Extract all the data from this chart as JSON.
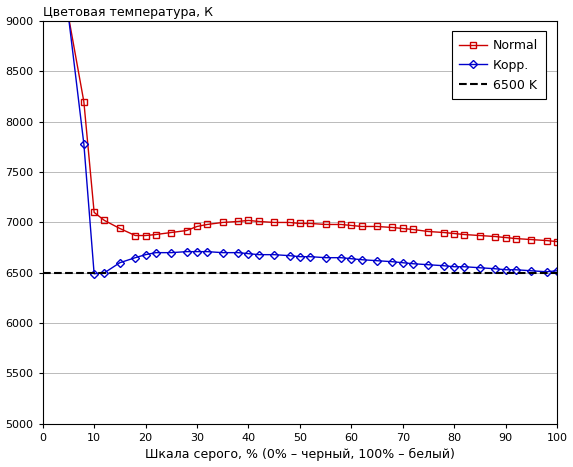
{
  "title": "Цветовая температура, К",
  "xlabel": "Шкала серого, % (0% – черный, 100% – белый)",
  "ylim": [
    5000,
    9000
  ],
  "yticks": [
    5000,
    5500,
    6000,
    6500,
    7000,
    7500,
    8000,
    8500,
    9000
  ],
  "xlim": [
    0,
    100
  ],
  "xticks": [
    0,
    10,
    20,
    30,
    40,
    50,
    60,
    70,
    80,
    90,
    100
  ],
  "ref_line": 6500,
  "normal_x": [
    5,
    8,
    10,
    12,
    15,
    18,
    20,
    22,
    25,
    28,
    30,
    32,
    35,
    38,
    40,
    42,
    45,
    48,
    50,
    52,
    55,
    58,
    60,
    62,
    65,
    68,
    70,
    72,
    75,
    78,
    80,
    82,
    85,
    88,
    90,
    92,
    95,
    98,
    100
  ],
  "normal_y": [
    9050,
    8200,
    7100,
    7020,
    6940,
    6870,
    6870,
    6880,
    6900,
    6920,
    6960,
    6980,
    7000,
    7010,
    7020,
    7010,
    7000,
    7000,
    6990,
    6990,
    6980,
    6980,
    6970,
    6960,
    6960,
    6950,
    6940,
    6930,
    6910,
    6900,
    6890,
    6880,
    6870,
    6860,
    6850,
    6840,
    6830,
    6820,
    6810
  ],
  "corr_x": [
    5,
    8,
    10,
    12,
    15,
    18,
    20,
    22,
    25,
    28,
    30,
    32,
    35,
    38,
    40,
    42,
    45,
    48,
    50,
    52,
    55,
    58,
    60,
    62,
    65,
    68,
    70,
    72,
    75,
    78,
    80,
    82,
    85,
    88,
    90,
    92,
    95,
    98,
    100
  ],
  "corr_y": [
    9050,
    7780,
    6490,
    6500,
    6600,
    6650,
    6680,
    6700,
    6700,
    6710,
    6710,
    6710,
    6700,
    6700,
    6690,
    6680,
    6680,
    6670,
    6660,
    6660,
    6650,
    6650,
    6640,
    6630,
    6620,
    6610,
    6600,
    6590,
    6580,
    6570,
    6560,
    6560,
    6550,
    6540,
    6530,
    6530,
    6520,
    6510,
    6520
  ],
  "normal_color": "#cc0000",
  "corr_color": "#0000cc",
  "ref_color": "#000000",
  "background": "#ffffff",
  "grid_color": "#b0b0b0",
  "legend_labels": [
    "Normal",
    "Корр.",
    "6500 K"
  ],
  "title_fontsize": 9,
  "label_fontsize": 9,
  "tick_fontsize": 8,
  "legend_fontsize": 9
}
